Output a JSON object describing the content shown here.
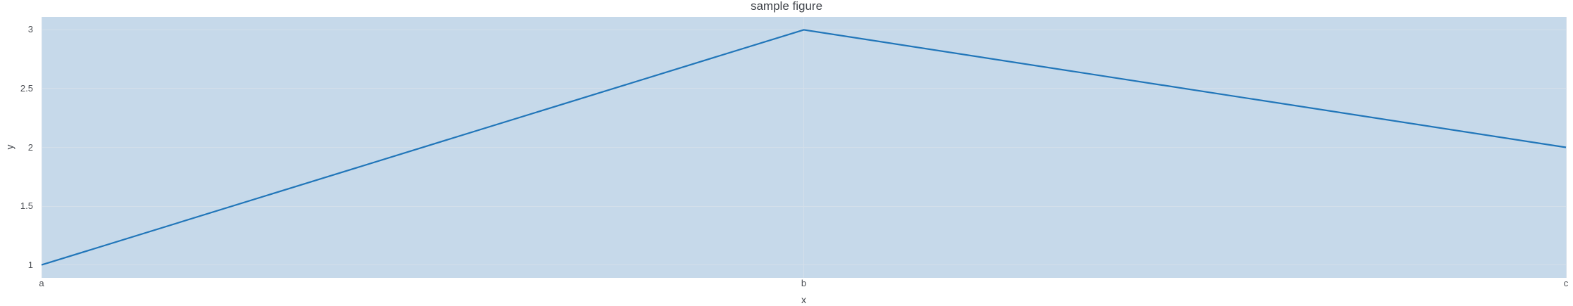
{
  "chart_data": {
    "type": "line",
    "title": "sample figure",
    "xlabel": "x",
    "ylabel": "y",
    "categories": [
      "a",
      "b",
      "c"
    ],
    "values": [
      1,
      3,
      2
    ],
    "yticks": [
      1,
      1.5,
      2,
      2.5,
      3
    ],
    "ylim": [
      0.89,
      3.11
    ],
    "grid": true,
    "legend": false,
    "colors": {
      "paper_bg": "#ffffff",
      "plot_bg": "#c6d9ea",
      "grid": "#d4dfea",
      "line": "#2176b9",
      "tick_text": "#4c4f54",
      "title_text": "#42464c"
    }
  }
}
